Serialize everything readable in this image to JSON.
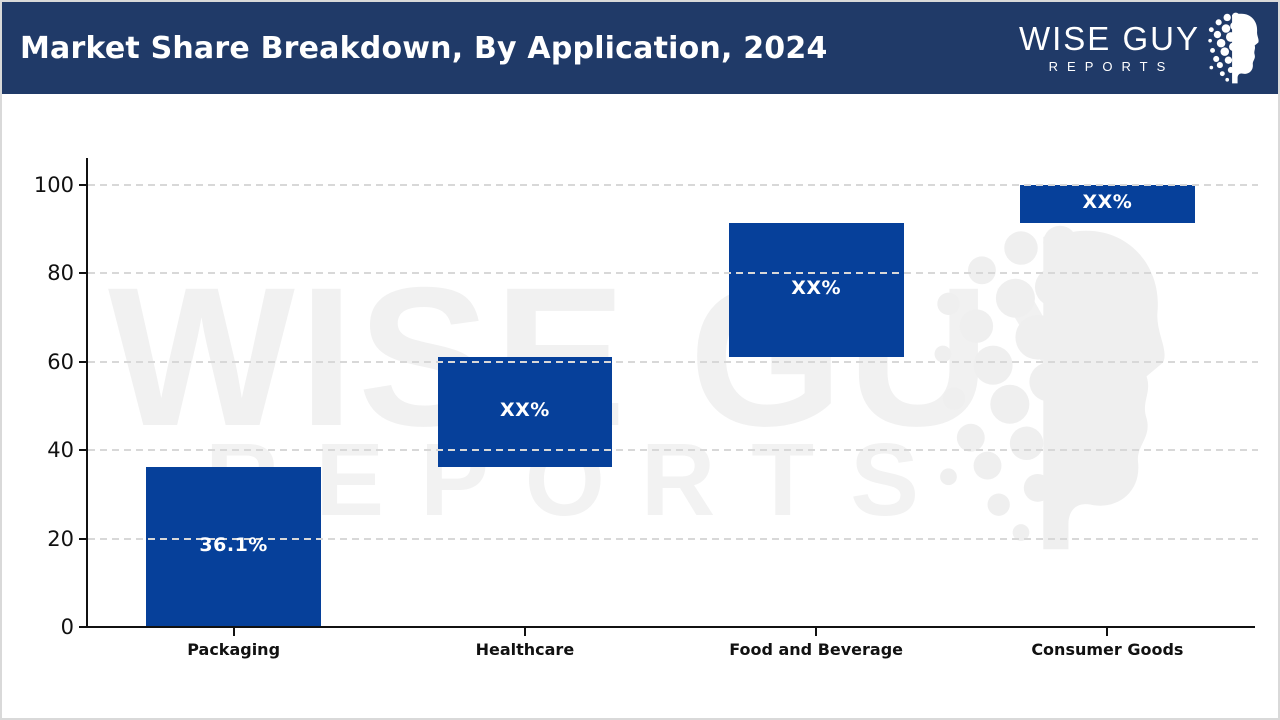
{
  "header": {
    "title": "Market Share Breakdown, By Application, 2024",
    "logo": {
      "name": "WISE GUY",
      "subname": "REPORTS",
      "head_icon": "dotted-face-profile"
    }
  },
  "watermark": {
    "line1": "WISE GUY",
    "line2": "REPORTS",
    "head_icon": "dotted-face-profile"
  },
  "chart_data": {
    "type": "bar",
    "subtype": "waterfall-market-share-breakdown",
    "title": "Market Share Breakdown, By Application, 2024",
    "categories": [
      "Packaging",
      "Healthcare",
      "Food and Beverage",
      "Consumer Goods"
    ],
    "bars": [
      {
        "category": "Packaging",
        "start": 0,
        "end": 36.1,
        "label": "36.1%"
      },
      {
        "category": "Healthcare",
        "start": 36.1,
        "end": 61.0,
        "label": "XX%"
      },
      {
        "category": "Food and Beverage",
        "start": 61.0,
        "end": 91.5,
        "label": "XX%"
      },
      {
        "category": "Consumer Goods",
        "start": 91.5,
        "end": 100,
        "label": "XX%"
      }
    ],
    "xlabel": "",
    "ylabel": "",
    "ylim": [
      0,
      100
    ],
    "yticks": [
      0,
      20,
      40,
      60,
      80,
      100
    ],
    "grid": "horizontal-dashed-above-bars",
    "legend": "none",
    "colors": {
      "bar": "#06409a",
      "bar_label": "#ffffff",
      "grid": "#d8d8d8",
      "axis": "#111111",
      "header_bg": "#203a68",
      "header_text": "#ffffff",
      "watermark": "#f1f1f1"
    }
  }
}
